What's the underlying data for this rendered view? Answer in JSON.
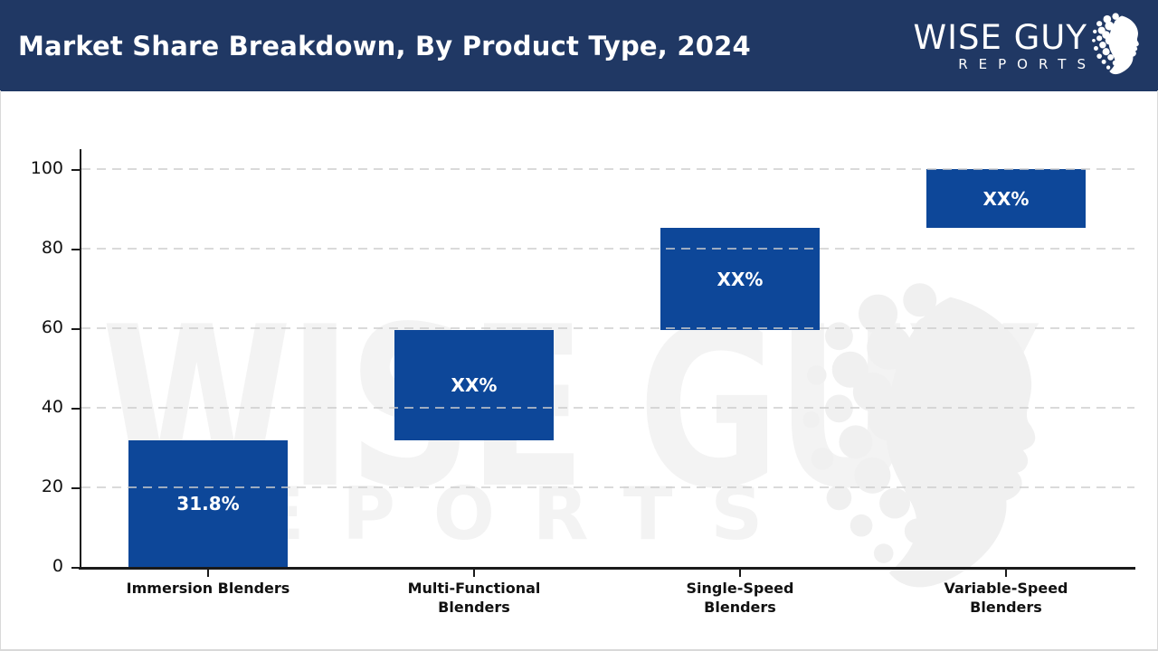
{
  "header": {
    "title": "Market Share Breakdown, By Product Type, 2024",
    "bg_color": "#203864",
    "logo": {
      "line1": "WISE GUY",
      "line2": "REPORTS"
    }
  },
  "watermark": {
    "line1": "WISE GUY",
    "line2": "REPORTS"
  },
  "chart_data": {
    "type": "bar",
    "subtype": "waterfall",
    "title": "Market Share Breakdown, By Product Type, 2024",
    "categories": [
      "Immersion Blenders",
      "Multi-Functional\nBlenders",
      "Single-Speed\nBlenders",
      "Variable-Speed\nBlenders"
    ],
    "segments": [
      {
        "category": "Immersion Blenders",
        "start": 0,
        "end": 31.8,
        "label": "31.8%"
      },
      {
        "category": "Multi-Functional Blenders",
        "start": 31.8,
        "end": 59.5,
        "label": "XX%"
      },
      {
        "category": "Single-Speed Blenders",
        "start": 59.5,
        "end": 85.2,
        "label": "XX%"
      },
      {
        "category": "Variable-Speed Blenders",
        "start": 85.2,
        "end": 100,
        "label": "XX%"
      }
    ],
    "y_ticks": [
      0,
      20,
      40,
      60,
      80,
      100
    ],
    "ylim": [
      0,
      100
    ],
    "grid": "horizontal-dashed",
    "legend": "none",
    "bar_color": "#0d4799",
    "grid_color": "#d8d8d8",
    "axis_color": "#1a1a1a"
  }
}
